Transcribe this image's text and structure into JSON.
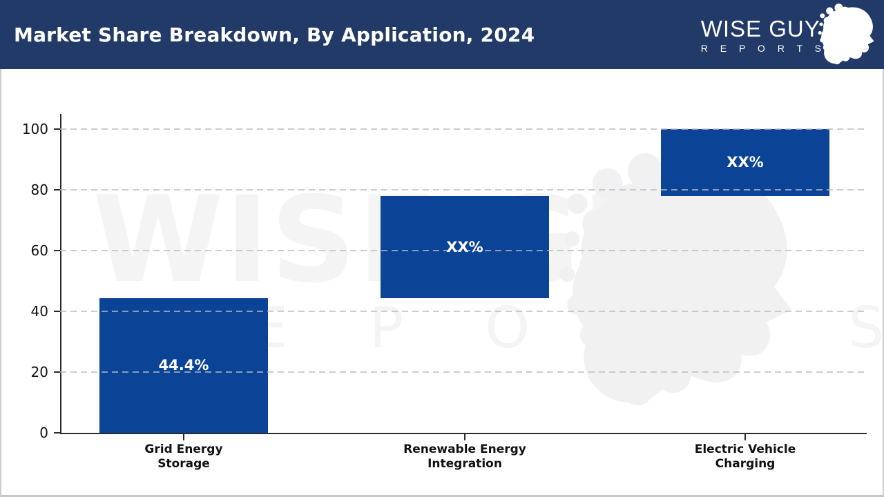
{
  "header": {
    "title": "Market Share Breakdown, By Application, 2024",
    "logo": {
      "wordmark": "WISE GUY",
      "reports": "R E P O R T S"
    }
  },
  "watermark": {
    "line1": "WISE GUY",
    "line2": "R E P O R T S"
  },
  "chart_data": {
    "type": "bar",
    "subtype": "waterfall-floating-bars",
    "title": "Market Share Breakdown, By Application, 2024",
    "categories": [
      "Grid Energy\nStorage",
      "Renewable Energy\nIntegration",
      "Electric Vehicle\nCharging"
    ],
    "segments": [
      {
        "label": "44.4%",
        "start": 0,
        "end": 44.4
      },
      {
        "label": "XX%",
        "start": 44.4,
        "end": 78
      },
      {
        "label": "XX%",
        "start": 78,
        "end": 100
      }
    ],
    "y_ticks": [
      0,
      20,
      40,
      60,
      80,
      100
    ],
    "ylim": [
      0,
      100
    ],
    "xlabel": "",
    "ylabel": "",
    "grid": "horizontal-dashed",
    "legend": "none",
    "bar_color": "#0b4397",
    "bar_label_color": "#ffffff"
  },
  "colors": {
    "header_navy": "#223a68",
    "bar_blue": "#0b4397",
    "gridline_gray": "#b6bbc4",
    "watermark_gray": "#f4f4f4",
    "axis_dark": "#2b2b2b"
  }
}
